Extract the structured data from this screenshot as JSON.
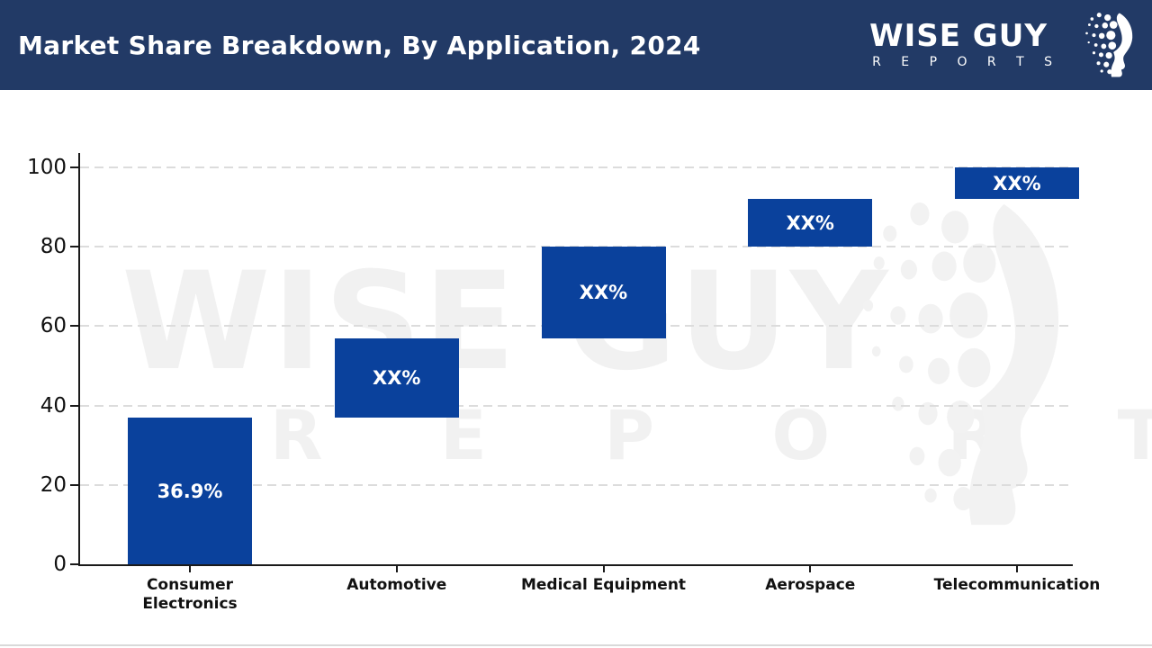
{
  "header": {
    "title": "Market Share Breakdown, By Application, 2024",
    "bg_color": "#223A66",
    "logo": {
      "line1": "WISE GUY",
      "line2": "R E P O R T S"
    }
  },
  "watermark": {
    "line1": "WISE GUY",
    "line2": "R E P O R T S"
  },
  "chart_data": {
    "type": "bar",
    "subtype": "floating-waterfall",
    "title": "Market Share Breakdown, By Application, 2024",
    "categories": [
      "Consumer\nElectronics",
      "Automotive",
      "Medical Equipment",
      "Aerospace",
      "Telecommunication"
    ],
    "series": [
      {
        "name": "Market Share %",
        "segments": [
          {
            "category": "Consumer Electronics",
            "start": 0,
            "end": 36.9,
            "label": "36.9%"
          },
          {
            "category": "Automotive",
            "start": 36.9,
            "end": 57,
            "label": "XX%"
          },
          {
            "category": "Medical Equipment",
            "start": 57,
            "end": 80,
            "label": "XX%"
          },
          {
            "category": "Aerospace",
            "start": 80,
            "end": 92,
            "label": "XX%"
          },
          {
            "category": "Telecommunication",
            "start": 92,
            "end": 100,
            "label": "XX%"
          }
        ]
      }
    ],
    "xlabel": "",
    "ylabel": "",
    "ylim": [
      0,
      104
    ],
    "yticks": [
      0,
      20,
      40,
      60,
      80,
      100
    ],
    "grid": "horizontal-dashed",
    "legend": "none",
    "bar_color": "#0A419C",
    "bar_label_color": "#FFFFFF",
    "axis_color": "#1A1A1A",
    "gridline_color": "#DCDCDC"
  }
}
